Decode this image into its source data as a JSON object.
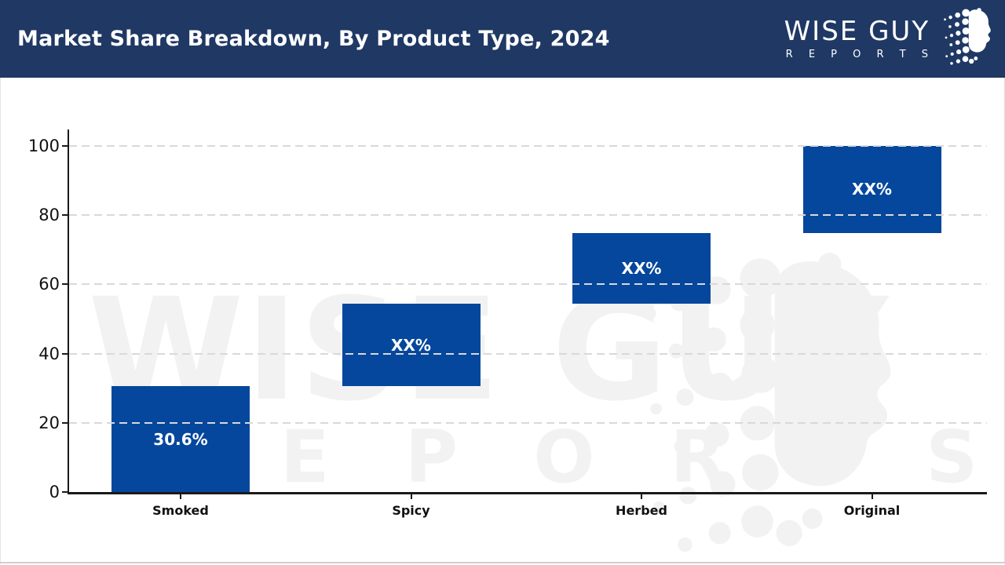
{
  "header": {
    "title": "Market Share Breakdown, By Product Type, 2024",
    "logo": {
      "wordmark": "WISE GUY",
      "subtitle": "R E P O R T S"
    }
  },
  "watermark": {
    "line1": "WISE GUY",
    "line2": "R E P O R T S"
  },
  "colors": {
    "header_bg": "#1f3864",
    "bar": "#05479c",
    "bar_label": "#ffffff",
    "gridline": "#d9d9d9",
    "axis": "#1a1a1a",
    "watermark": "#f2f2f2"
  },
  "chart_data": {
    "type": "bar",
    "subtype": "waterfall",
    "title": "Market Share Breakdown, By Product Type, 2024",
    "categories": [
      "Smoked",
      "Spicy",
      "Herbed",
      "Original"
    ],
    "segments": [
      {
        "category": "Smoked",
        "start": 0,
        "end": 30.6,
        "label": "30.6%"
      },
      {
        "category": "Spicy",
        "start": 30.6,
        "end": 54.4,
        "label": "XX%"
      },
      {
        "category": "Herbed",
        "start": 54.4,
        "end": 74.9,
        "label": "XX%"
      },
      {
        "category": "Original",
        "start": 74.9,
        "end": 100,
        "label": "XX%"
      }
    ],
    "ylim": [
      0,
      100
    ],
    "yticks": [
      0,
      20,
      40,
      60,
      80,
      100
    ],
    "xlabel": "",
    "ylabel": "",
    "grid": "horizontal-dashed",
    "legend": "none"
  }
}
